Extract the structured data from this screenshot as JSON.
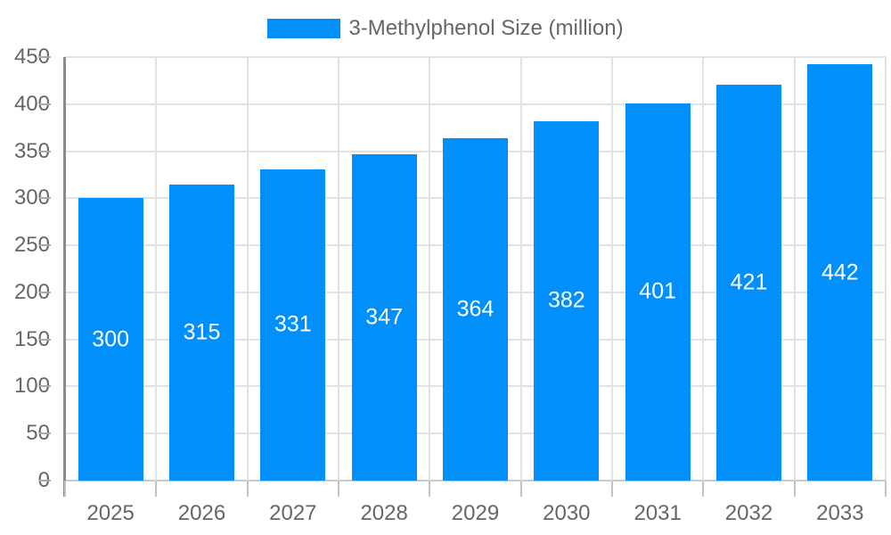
{
  "chart_data": {
    "type": "bar",
    "legend": "3-Methylphenol Size (million)",
    "categories": [
      "2025",
      "2026",
      "2027",
      "2028",
      "2029",
      "2030",
      "2031",
      "2032",
      "2033"
    ],
    "series": [
      {
        "name": "3-Methylphenol Size (million)",
        "values": [
          300,
          315,
          331,
          347,
          364,
          382,
          401,
          421,
          442
        ]
      }
    ],
    "title": "",
    "xlabel": "",
    "ylabel": "",
    "ylim": [
      0,
      450
    ],
    "yticks": [
      0,
      50,
      100,
      150,
      200,
      250,
      300,
      350,
      400,
      450
    ],
    "grid": true,
    "legend_position": "top",
    "value_labels": "centered-inside-bars",
    "colors": {
      "bar": "#018ffb",
      "value_label": "#ffffff",
      "axis_text": "#666666",
      "gridline": "#e2e2e2",
      "axis_line": "#8a8a8a"
    }
  }
}
